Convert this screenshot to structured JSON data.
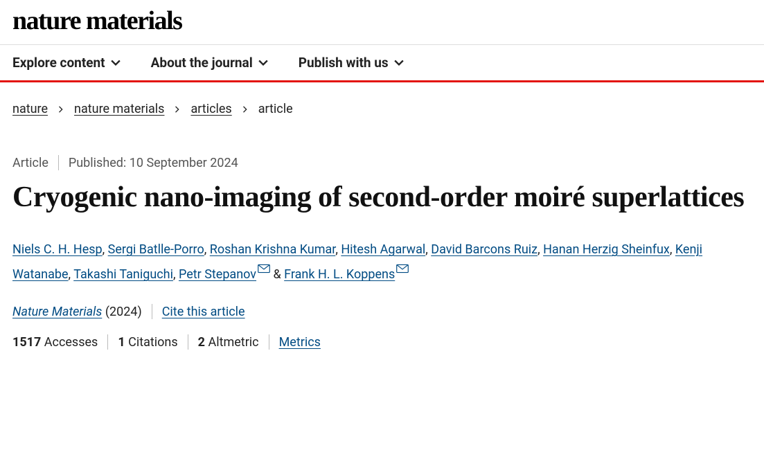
{
  "logo": "nature materials",
  "nav": [
    {
      "label": "Explore content"
    },
    {
      "label": "About the journal"
    },
    {
      "label": "Publish with us"
    }
  ],
  "breadcrumb": {
    "items": [
      {
        "label": "nature",
        "link": true
      },
      {
        "label": "nature materials",
        "link": true
      },
      {
        "label": "articles",
        "link": true
      },
      {
        "label": "article",
        "link": false
      }
    ]
  },
  "article_type": "Article",
  "published_label": "Published: 10 September 2024",
  "title": "Cryogenic nano-imaging of second-order moiré superlattices",
  "authors": [
    {
      "name": "Niels C. H. Hesp",
      "mail": false
    },
    {
      "name": "Sergi Batlle-Porro",
      "mail": false
    },
    {
      "name": "Roshan Krishna Kumar",
      "mail": false
    },
    {
      "name": "Hitesh Agarwal",
      "mail": false
    },
    {
      "name": "David Barcons Ruiz",
      "mail": false
    },
    {
      "name": "Hanan Herzig Sheinfux",
      "mail": false
    },
    {
      "name": "Kenji Watanabe",
      "mail": false
    },
    {
      "name": "Takashi Taniguchi",
      "mail": false
    },
    {
      "name": "Petr Stepanov",
      "mail": true
    },
    {
      "name": "Frank H. L. Koppens",
      "mail": true
    }
  ],
  "journal": "Nature Materials",
  "year": "(2024)",
  "cite_label": "Cite this article",
  "metrics": {
    "accesses": {
      "value": "1517",
      "label": "Accesses"
    },
    "citations": {
      "value": "1",
      "label": "Citations"
    },
    "altmetric": {
      "value": "2",
      "label": "Altmetric"
    },
    "link": "Metrics"
  },
  "colors": {
    "brand_red": "#e3120b",
    "link_blue": "#004b83",
    "text": "#222222",
    "muted": "#555555",
    "divider": "#bbbbbb"
  }
}
